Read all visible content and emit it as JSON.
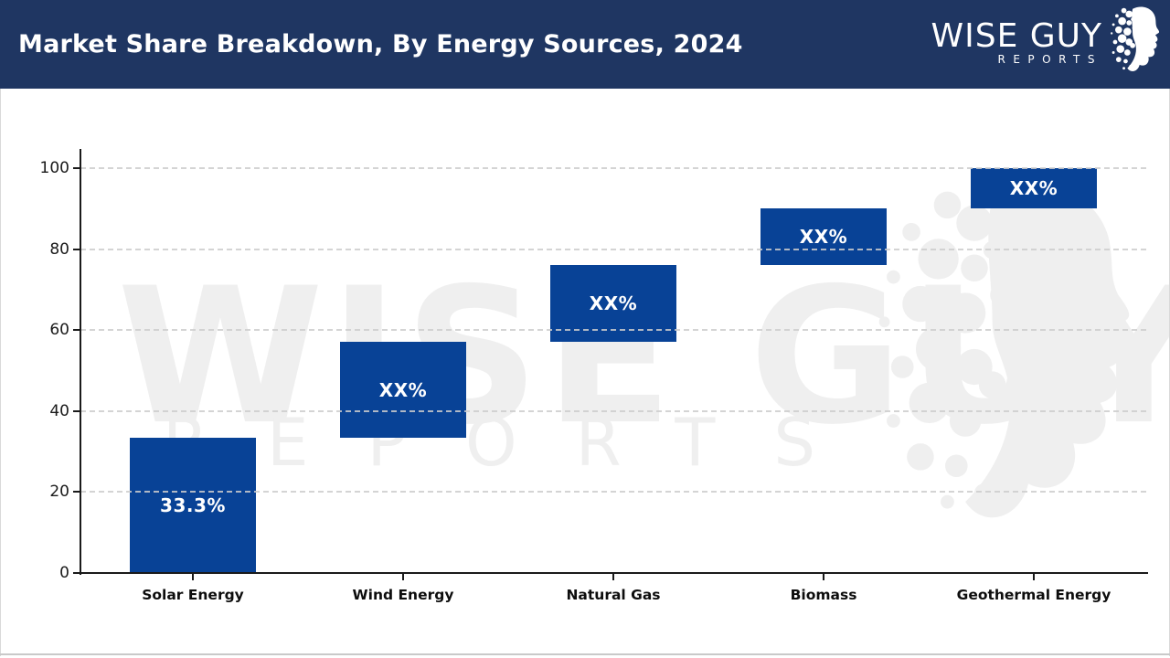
{
  "header": {
    "title": "Market Share Breakdown, By Energy Sources, 2024",
    "bg_color": "#1f3662",
    "logo": {
      "line1": "WISE GUY",
      "line2": "REPORTS",
      "face_icon": "face-profile-dots-icon"
    }
  },
  "watermark": {
    "line1": "WISE GUY",
    "line2": "REPORTS",
    "face_icon": "face-profile-dots-icon"
  },
  "chart_data": {
    "type": "bar",
    "subtype": "waterfall",
    "title": "Market Share Breakdown, By Energy Sources, 2024",
    "xlabel": "",
    "ylabel": "",
    "categories": [
      "Solar Energy",
      "Wind Energy",
      "Natural Gas",
      "Biomass",
      "Geothermal Energy"
    ],
    "segments": [
      {
        "category": "Solar Energy",
        "start": 0,
        "end": 33.3,
        "label": "33.3%"
      },
      {
        "category": "Wind Energy",
        "start": 33.3,
        "end": 57,
        "label": "XX%"
      },
      {
        "category": "Natural Gas",
        "start": 57,
        "end": 76,
        "label": "XX%"
      },
      {
        "category": "Biomass",
        "start": 76,
        "end": 90,
        "label": "XX%"
      },
      {
        "category": "Geothermal Energy",
        "start": 90,
        "end": 100,
        "label": "XX%"
      }
    ],
    "yticks": [
      0,
      20,
      40,
      60,
      80,
      100
    ],
    "ylim": [
      0,
      105
    ],
    "grid": true,
    "grid_style": "dashed",
    "legend": false,
    "bar_color": "#084296",
    "bar_label_color": "#ffffff",
    "axis_color": "#1a1a1a"
  }
}
